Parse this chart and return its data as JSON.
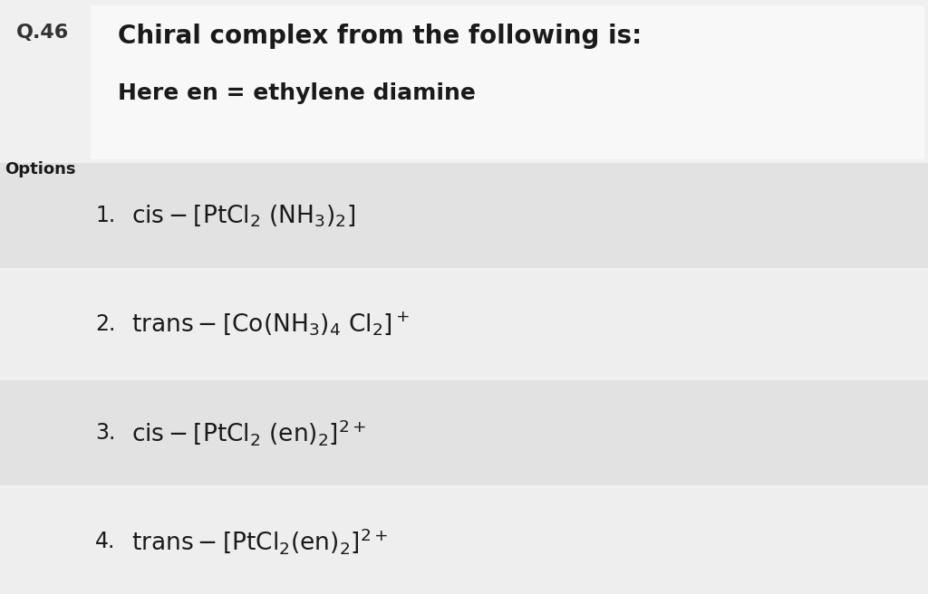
{
  "background_color": "#f0f0f0",
  "top_bg": "#f2f2f2",
  "opt_bg_dark": "#e0e0e0",
  "opt_bg_light": "#f0f0f0",
  "question_label": "Q.46",
  "question_text": "Chiral complex from the following is:",
  "note_text": "Here en = ethylene diamine",
  "options_label": "Options",
  "options": [
    {
      "number": "1.",
      "latex": "$\\mathrm{cis - [PtCl_2\\ (NH_3)_2]}$",
      "bg": "#e2e2e2"
    },
    {
      "number": "2.",
      "latex": "$\\mathrm{trans - [Co(NH_3)_4\\ Cl_2]^+}$",
      "bg": "#eeeeee"
    },
    {
      "number": "3.",
      "latex": "$\\mathrm{cis - [PtCl_2\\ (en)_2]^{2+}}$",
      "bg": "#e2e2e2"
    },
    {
      "number": "4.",
      "latex": "$\\mathrm{trans - [PtCl_2(en)_2]^{2+}}$",
      "bg": "#eeeeee"
    }
  ],
  "q_label_fontsize": 16,
  "question_fontsize": 20,
  "note_fontsize": 18,
  "options_label_fontsize": 13,
  "option_number_fontsize": 17,
  "option_text_fontsize": 19,
  "figsize": [
    10.24,
    6.56
  ],
  "dpi": 100
}
